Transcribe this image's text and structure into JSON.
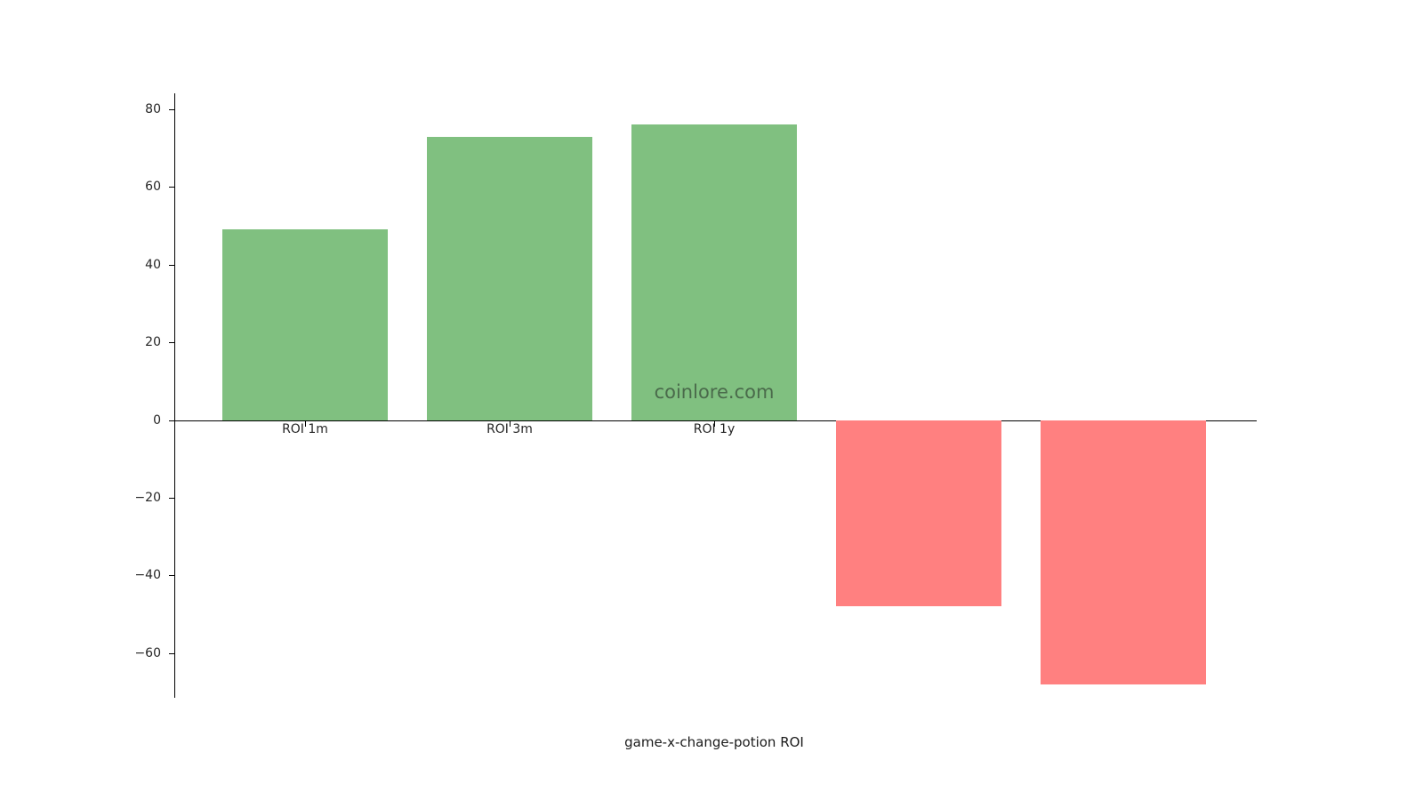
{
  "chart_data": {
    "type": "bar",
    "title": "game-x-change-potion ROI",
    "categories": [
      "ROI 1m",
      "ROI 3m",
      "ROI 1y",
      "",
      ""
    ],
    "values": [
      49,
      73,
      76,
      -48,
      -68
    ],
    "bar_colors": [
      "#80c080",
      "#80c080",
      "#80c080",
      "#ff8080",
      "#ff8080"
    ],
    "positive_color": "#80c080",
    "negative_color": "#ff8080",
    "yticks": [
      80,
      60,
      40,
      20,
      0,
      -20,
      -40,
      -60
    ],
    "ylim": [
      -71.5,
      84.1
    ],
    "xlabel": "",
    "ylabel": "",
    "grid": false,
    "legend_position": "none"
  },
  "watermark": {
    "text": "coinlore.com"
  },
  "colors": {
    "axis": "#000000",
    "tick_label": "#262626",
    "title": "#1a1a1a"
  }
}
